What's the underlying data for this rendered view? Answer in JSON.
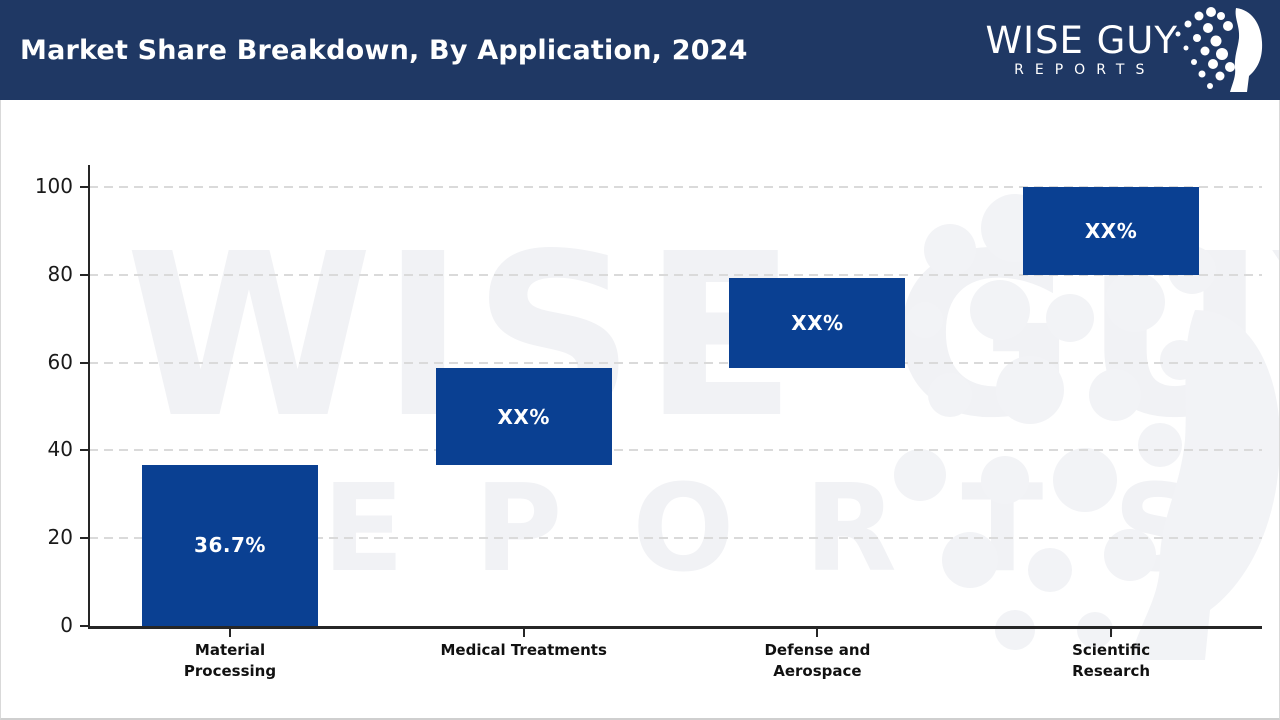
{
  "header": {
    "title": "Market Share Breakdown, By Application, 2024",
    "logo": {
      "line1": "WISE GUY",
      "line2": "REPORTS"
    }
  },
  "watermark": {
    "line1": "WISE GUY",
    "line2": "REPORTS"
  },
  "chart_data": {
    "type": "bar",
    "subtype": "waterfall",
    "title": "Market Share Breakdown, By Application, 2024",
    "categories": [
      "Material\nProcessing",
      "Medical Treatments",
      "Defense and\nAerospace",
      "Scientific\nResearch"
    ],
    "segments": [
      {
        "start": 0,
        "end": 36.7,
        "label": "36.7%"
      },
      {
        "start": 36.7,
        "end": 58.7,
        "label": "XX%"
      },
      {
        "start": 58.7,
        "end": 79.2,
        "label": "XX%"
      },
      {
        "start": 80,
        "end": 100,
        "label": "XX%"
      }
    ],
    "yticks": [
      0,
      20,
      40,
      60,
      80,
      100
    ],
    "ylim": [
      0,
      105
    ],
    "xlabel": "",
    "ylabel": "",
    "grid": "horizontal-dashed",
    "legend": "none",
    "bar_color": "#0a4092",
    "bar_label_color": "#ffffff"
  }
}
